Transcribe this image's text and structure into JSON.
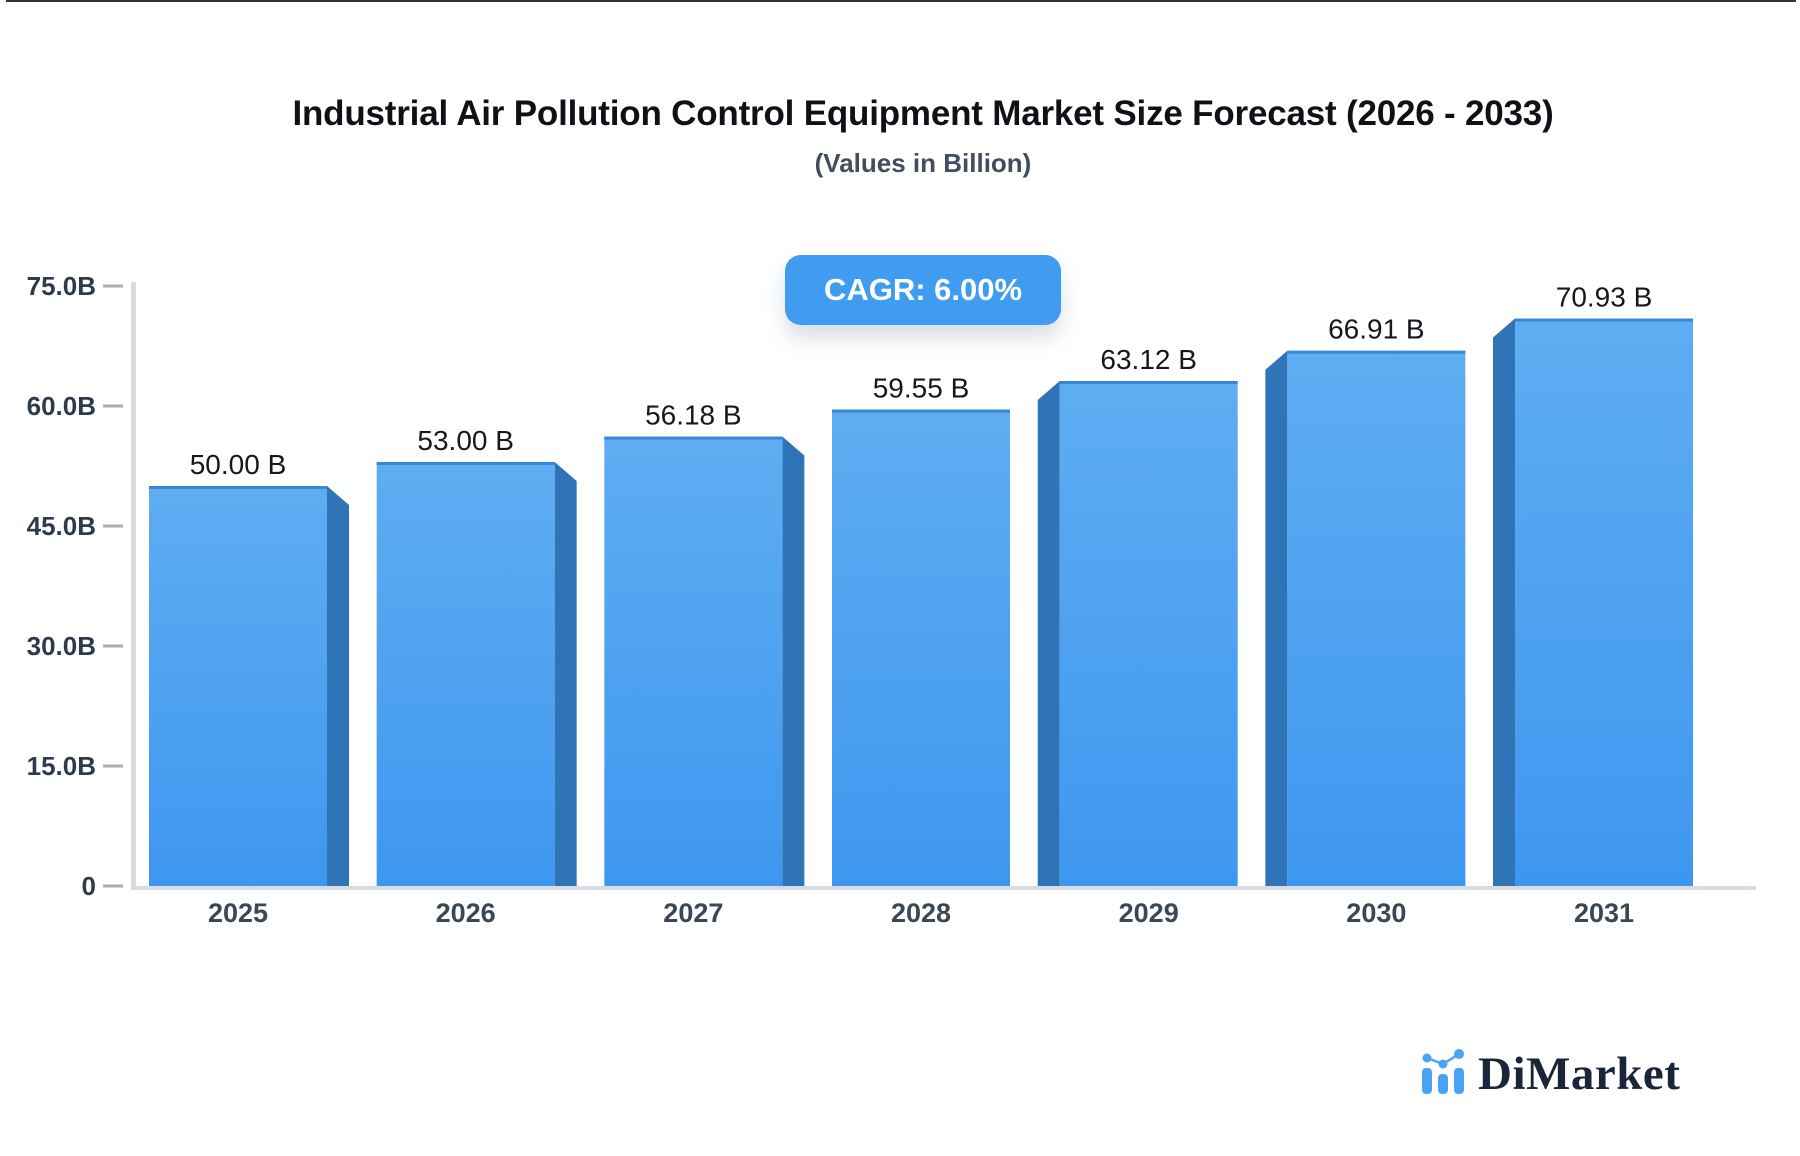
{
  "header": {
    "title": "Industrial Air Pollution Control Equipment Market Size Forecast (2026 - 2033)",
    "subtitle": "(Values in Billion)"
  },
  "badge": {
    "label": "CAGR: 6.00%",
    "bg_color": "#3f9cf1",
    "text_color": "#ffffff"
  },
  "chart_data": {
    "type": "bar",
    "categories": [
      "2025",
      "2026",
      "2027",
      "2028",
      "2029",
      "2030",
      "2031"
    ],
    "values": [
      50.0,
      53.0,
      56.18,
      59.55,
      63.12,
      66.91,
      70.93
    ],
    "bar_labels": [
      "50.00 B",
      "53.00 B",
      "56.18 B",
      "59.55 B",
      "63.12 B",
      "66.91 B",
      "70.93 B"
    ],
    "title": "Industrial Air Pollution Control Equipment Market Size Forecast (2026 - 2033)",
    "xlabel": "",
    "ylabel": "",
    "ylim": [
      0,
      75
    ],
    "y_tick_values": [
      0,
      15,
      30,
      45,
      60,
      75
    ],
    "y_tick_labels": [
      "0",
      "15.0B",
      "30.0B",
      "45.0B",
      "60.0B",
      "75.0B"
    ],
    "grid": false,
    "legend": false,
    "style_3d": true,
    "colors": {
      "bar_face_top": "#5fadf2",
      "bar_face_bottom": "#3e97ef",
      "bar_side": "#2e74b6",
      "bar_top_edge": "#3787d6",
      "axis_line": "#d8dbe1",
      "tick_mark": "#a8aeb6",
      "y_tick_label": "#2e3b4c",
      "x_tick_label": "#3c4754",
      "value_label": "#15181d"
    }
  },
  "footer": {
    "logo_text": "DiMarket",
    "logo_icon": "mini-bar-chart-icon",
    "logo_icon_color": "#4aa3f5",
    "logo_text_color": "#1b2539"
  }
}
